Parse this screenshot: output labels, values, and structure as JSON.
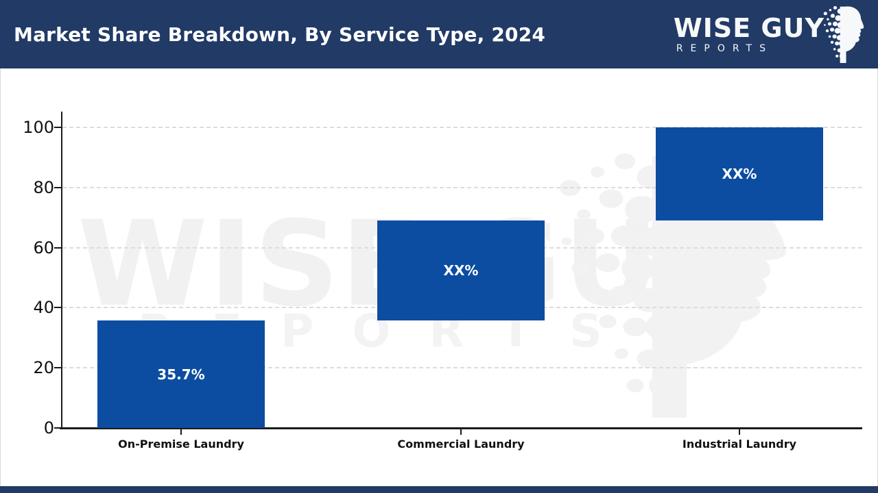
{
  "header": {
    "title": "Market Share Breakdown, By Service Type, 2024",
    "logo": {
      "wordmark": "WISE GUY",
      "subtitle": "REPORTS"
    }
  },
  "watermark": {
    "wordmark": "WISE GUY",
    "subtitle": "REPORTS"
  },
  "chart_data": {
    "type": "bar",
    "subtype": "floating-waterfall",
    "title": "Market Share Breakdown, By Service Type, 2024",
    "categories": [
      "On-Premise Laundry",
      "Commercial Laundry",
      "Industrial Laundry"
    ],
    "segments": [
      {
        "category": "On-Premise Laundry",
        "start": 0,
        "end": 35.7,
        "label": "35.7%"
      },
      {
        "category": "Commercial Laundry",
        "start": 35.7,
        "end": 69,
        "label": "XX%"
      },
      {
        "category": "Industrial Laundry",
        "start": 69,
        "end": 100,
        "label": "XX%"
      }
    ],
    "xlabel": "",
    "ylabel": "",
    "ylim": [
      0,
      100
    ],
    "yticks": [
      0,
      20,
      40,
      60,
      80,
      100
    ],
    "grid": "horizontal-dashed",
    "legend": "none",
    "bar_color": "#0c4da2",
    "bar_label_color": "#ffffff"
  },
  "colors": {
    "header_bg": "#213a66",
    "footer_bg": "#213a66",
    "bar": "#0c4da2",
    "watermark": "#f1f1f1",
    "gridline": "#dcdcdc",
    "axis": "#1a1a1a"
  }
}
